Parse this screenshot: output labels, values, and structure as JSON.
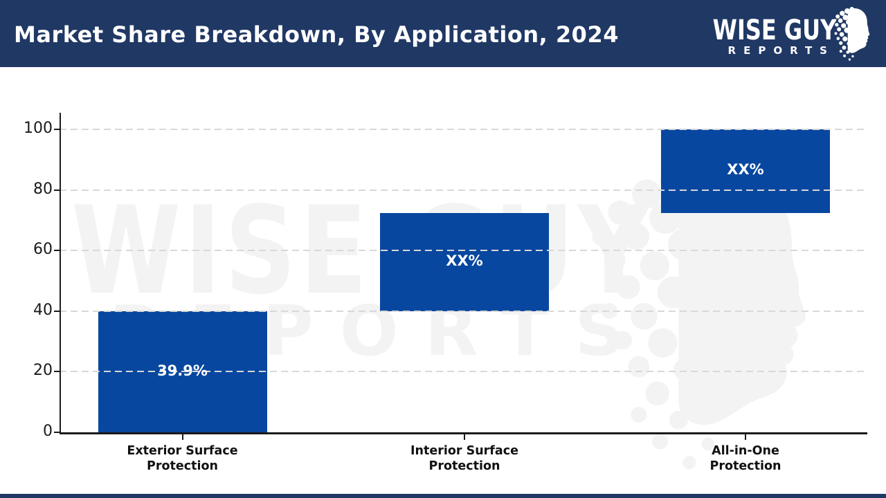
{
  "header": {
    "title": "Market Share Breakdown, By Application, 2024",
    "logo": {
      "wordmark": "WISE GUY",
      "subtext": "REPORTS"
    }
  },
  "watermark": {
    "wordmark": "WISE GUY",
    "subtext": "REPORTS"
  },
  "footer": {},
  "chart_data": {
    "type": "bar",
    "subtype": "stacked-waterfall",
    "title": "Market Share Breakdown, By Application, 2024",
    "categories": [
      [
        "Exterior Surface",
        "Protection"
      ],
      [
        "Interior Surface",
        "Protection"
      ],
      [
        "All-in-One",
        "Protection"
      ]
    ],
    "segments": [
      {
        "category": "Exterior Surface Protection",
        "start": 0,
        "end": 39.9,
        "label": "39.9%"
      },
      {
        "category": "Interior Surface Protection",
        "start": 39.9,
        "end": 72.4,
        "label": "XX%"
      },
      {
        "category": "All-in-One Protection",
        "start": 72.4,
        "end": 100,
        "label": "XX%"
      }
    ],
    "xlabel": "",
    "ylabel": "",
    "ylim": [
      0,
      100
    ],
    "yticks": [
      0,
      20,
      40,
      60,
      80,
      100
    ],
    "grid": "dashed-horizontal",
    "legend": "none",
    "bar_color": "#08479f",
    "bar_label_color": "#ffffff"
  },
  "colors": {
    "header_bg": "#203864",
    "footer_bg": "#203864",
    "bar": "#08479f",
    "gridline": "#d8d8d8",
    "axis": "#1a1a1a",
    "watermark": "#f3f3f3"
  }
}
